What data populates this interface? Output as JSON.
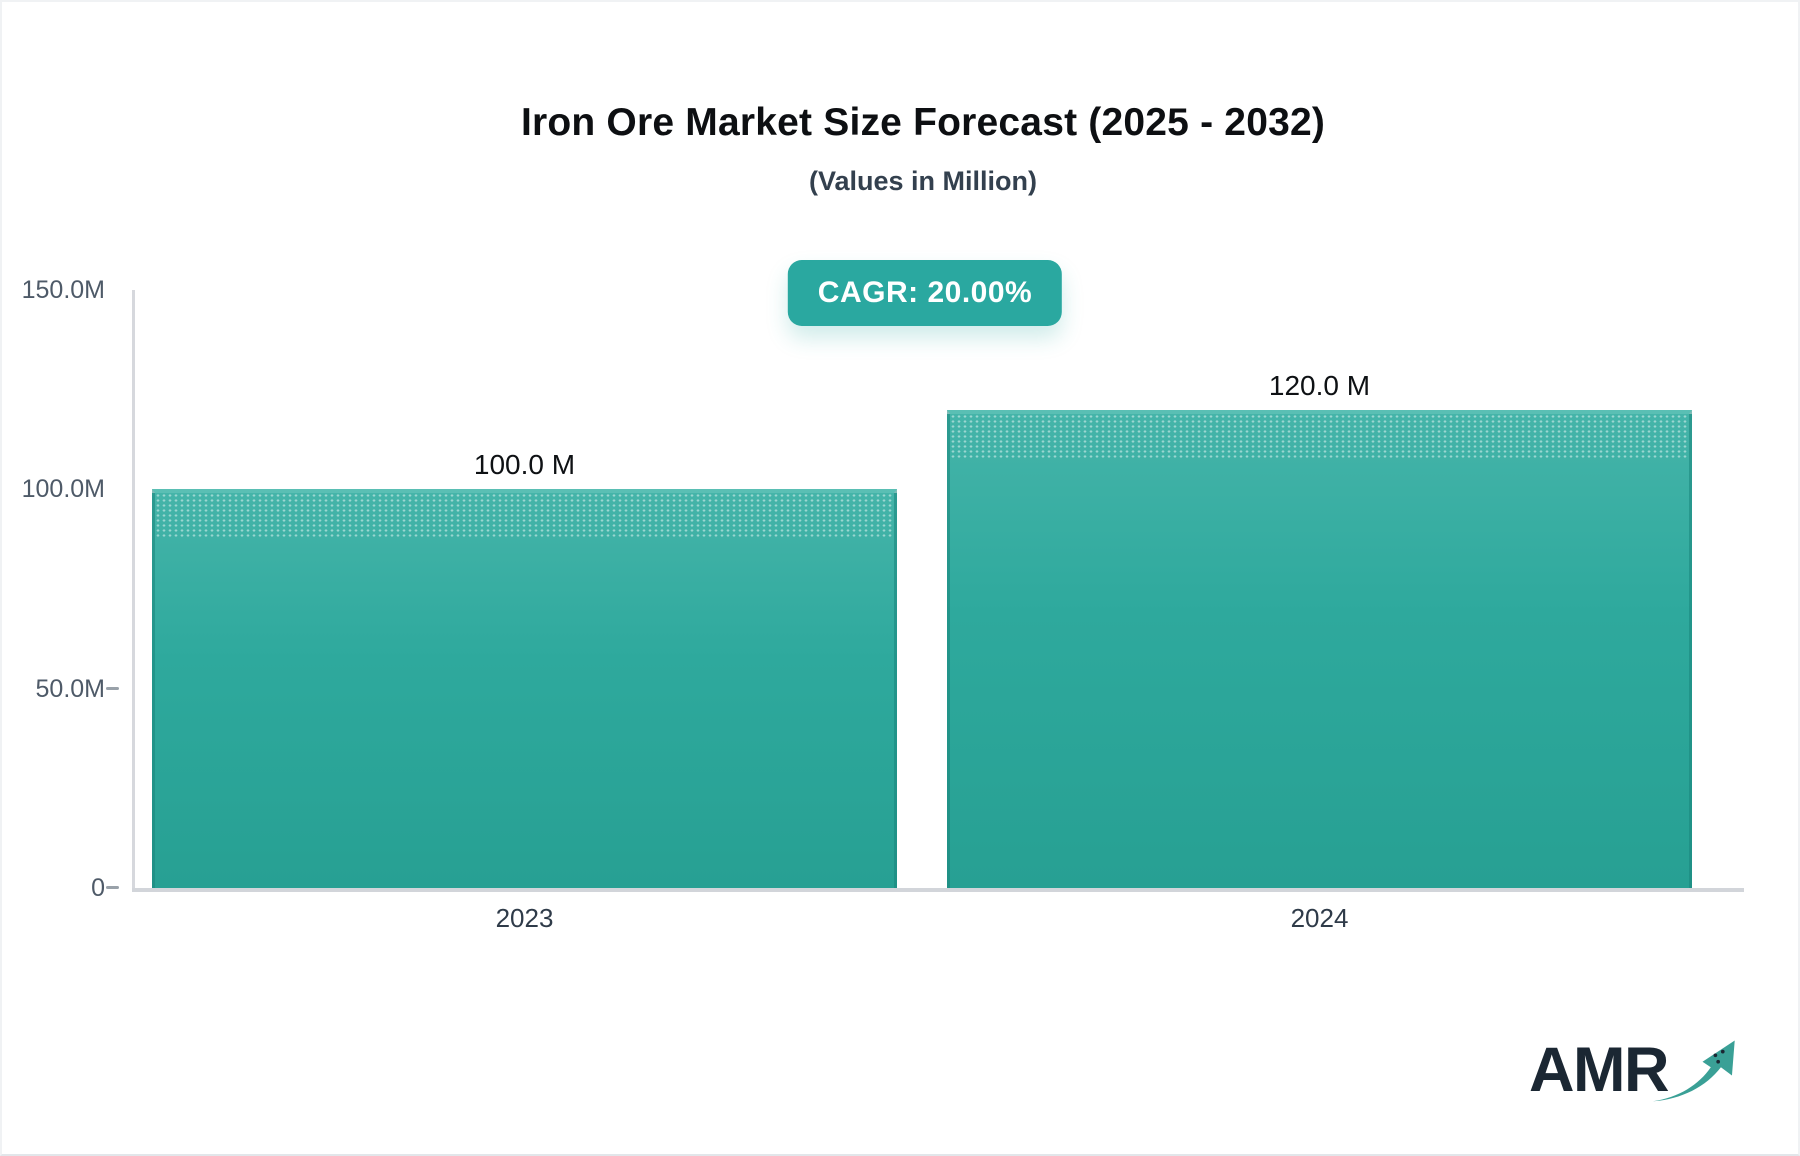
{
  "header": {
    "title": "Iron Ore Market Size Forecast (2025 - 2032)",
    "subtitle": "(Values in Million)",
    "cagr_badge": "CAGR: 20.00%"
  },
  "chart_data": {
    "type": "bar",
    "title": "Iron Ore Market Size Forecast (2025 - 2032)",
    "subtitle": "(Values in Million)",
    "unit": "Million",
    "cagr_percent": "20.00%",
    "categories": [
      "2023",
      "2024"
    ],
    "values": [
      100.0,
      120.0
    ],
    "bar_value_labels": [
      "100.0 M",
      "120.0 M"
    ],
    "xlabel": "",
    "ylabel": "",
    "ylim": [
      0,
      150
    ],
    "yticks": [
      {
        "label": "150.0M",
        "value": 150,
        "dash": false
      },
      {
        "label": "100.0M",
        "value": 100,
        "dash": false
      },
      {
        "label": "50.0M",
        "value": 50,
        "dash": true
      },
      {
        "label": "0",
        "value": 0,
        "dash": true
      }
    ],
    "grid": false,
    "legend_position": "none"
  },
  "colors": {
    "accent_teal": "#2aa8a0",
    "bar_gradient_top": "#45b4a9",
    "bar_gradient_bottom": "#27a093",
    "axis_line": "#d4d7db",
    "tick_gray": "#99a1a9",
    "logo_navy": "#1b2733",
    "logo_teal": "#3aa096"
  },
  "logo": {
    "text": "AMR"
  }
}
